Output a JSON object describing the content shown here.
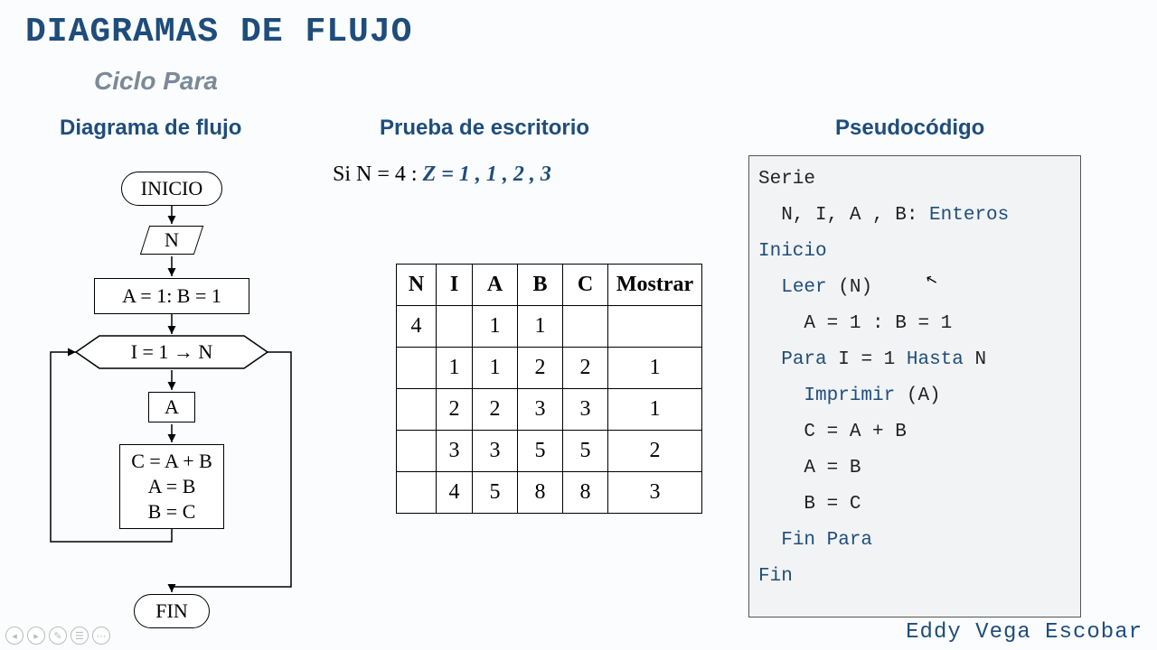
{
  "title": "DIAGRAMAS DE FLUJO",
  "subtitle": "Ciclo Para",
  "columns": {
    "flow": "Diagrama de flujo",
    "desk": "Prueba de escritorio",
    "pseudo": "Pseudocódigo"
  },
  "flowchart": {
    "inicio": "INICIO",
    "read": "N",
    "init": "A = 1: B = 1",
    "loop": "I = 1  →  N",
    "print": "A",
    "body1": "C = A + B",
    "body2": "A = B",
    "body3": "B = C",
    "fin": "FIN"
  },
  "desk": {
    "cond_prefix": "Si N = 4 :",
    "cond_z": "  Z  =  1 , 1 , 2 , 3",
    "headers": [
      "N",
      "I",
      "A",
      "B",
      "C",
      "Mostrar"
    ],
    "rows": [
      [
        "4",
        "",
        "1",
        "1",
        "",
        ""
      ],
      [
        "",
        "1",
        "1",
        "2",
        "2",
        "1"
      ],
      [
        "",
        "2",
        "2",
        "3",
        "3",
        "1"
      ],
      [
        "",
        "3",
        "3",
        "5",
        "5",
        "2"
      ],
      [
        "",
        "4",
        "5",
        "8",
        "8",
        "3"
      ]
    ]
  },
  "pseudo": {
    "lines": [
      {
        "indent": 0,
        "segs": [
          {
            "t": "Serie",
            "k": false
          }
        ]
      },
      {
        "indent": 1,
        "segs": [
          {
            "t": "N, I, A , B: ",
            "k": false
          },
          {
            "t": "Enteros",
            "k": true
          }
        ]
      },
      {
        "indent": 0,
        "segs": [
          {
            "t": "Inicio",
            "k": true
          }
        ]
      },
      {
        "indent": 1,
        "segs": [
          {
            "t": "Leer",
            "k": true
          },
          {
            "t": " (N)",
            "k": false
          }
        ]
      },
      {
        "indent": 2,
        "segs": [
          {
            "t": "A = 1 : B = 1",
            "k": false
          }
        ]
      },
      {
        "indent": 1,
        "segs": [
          {
            "t": "Para",
            "k": true
          },
          {
            "t": " I = 1 ",
            "k": false
          },
          {
            "t": "Hasta",
            "k": true
          },
          {
            "t": " N",
            "k": false
          }
        ]
      },
      {
        "indent": 2,
        "segs": [
          {
            "t": "Imprimir",
            "k": true
          },
          {
            "t": " (A)",
            "k": false
          }
        ]
      },
      {
        "indent": 2,
        "segs": [
          {
            "t": "C = A + B",
            "k": false
          }
        ]
      },
      {
        "indent": 2,
        "segs": [
          {
            "t": "A = B",
            "k": false
          }
        ]
      },
      {
        "indent": 2,
        "segs": [
          {
            "t": "B = C",
            "k": false
          }
        ]
      },
      {
        "indent": 1,
        "segs": [
          {
            "t": "Fin Para",
            "k": true
          }
        ]
      },
      {
        "indent": 0,
        "segs": [
          {
            "t": "Fin",
            "k": true
          }
        ]
      }
    ]
  },
  "author": "Eddy Vega Escobar",
  "controls": [
    "◂",
    "▸",
    "✎",
    "☰",
    "⋯"
  ],
  "colors": {
    "accent": "#1e4d7b",
    "muted": "#7b8a99",
    "codebg": "#f2f3f4",
    "border": "#000000"
  }
}
